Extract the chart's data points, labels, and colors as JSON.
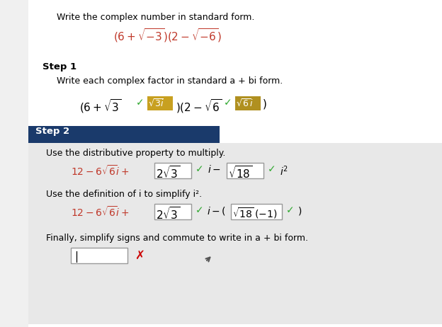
{
  "bg_color": "#f0f0f0",
  "white": "#ffffff",
  "dark_blue": "#1a3a6b",
  "red_text": "#c0392b",
  "black": "#000000",
  "gray_text": "#333333",
  "green_check": "#2ecc40",
  "orange_box": "#e8a020",
  "teal_box": "#2aa198",
  "input_box_color": "#e8e8e8",
  "title": "Write the complex number in standard form.",
  "main_expr": "(6 + √−3)(2 − √−6)",
  "step1_label": "Step 1",
  "step1_desc": "Write each complex factor in standard a + bi form.",
  "step2_label": "Step 2",
  "step2_desc1": "Use the distributive property to multiply.",
  "step2_desc2": "Use the definition of i to simplify i².",
  "step2_desc3": "Finally, simplify signs and commute to write in a + bi form."
}
